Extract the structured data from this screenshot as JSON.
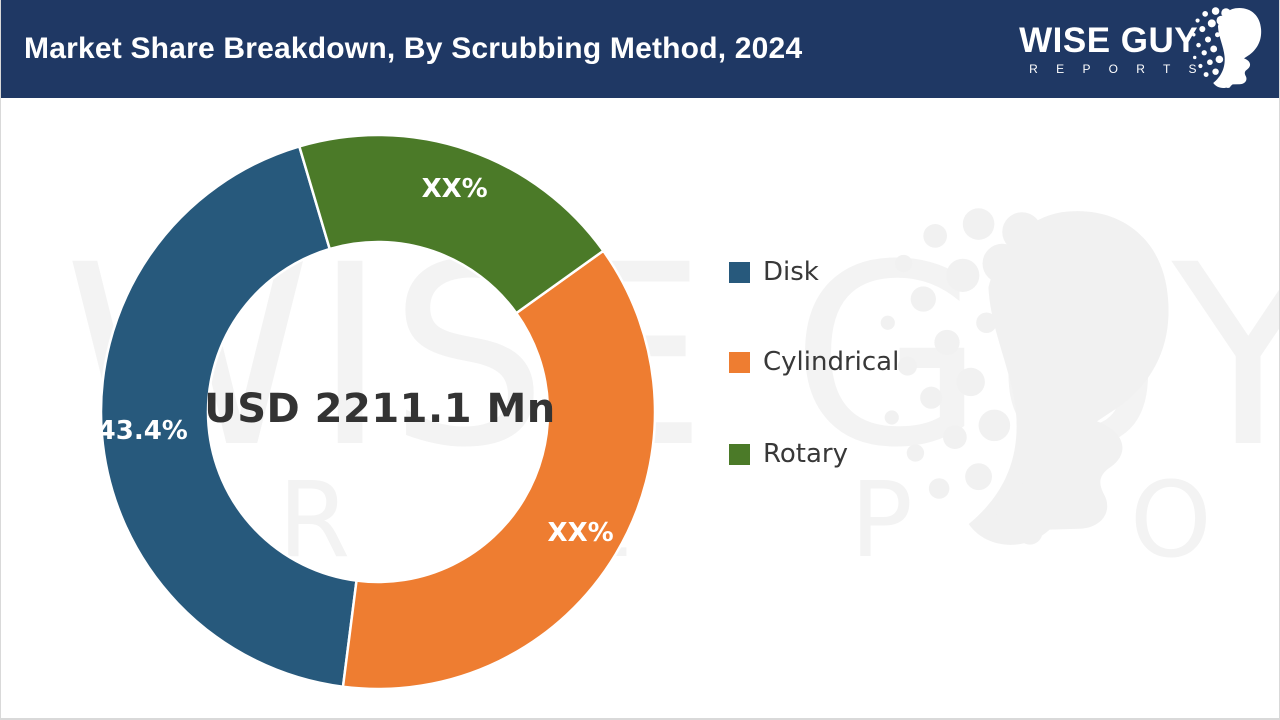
{
  "header": {
    "title": "Market Share Breakdown, By Scrubbing Method, 2024",
    "bg_color": "#1f3864"
  },
  "logo": {
    "line1": "WISE GUY",
    "line2": "R E P O R T S"
  },
  "watermark": {
    "line1": "WISE GUY",
    "line2": "R E P O R T S"
  },
  "chart_data": {
    "type": "pie",
    "subtype": "donut",
    "title": "Market Share Breakdown, By Scrubbing Method, 2024",
    "center_label": "USD 2211.1 Mn",
    "start_angle_deg": 343.5,
    "direction": "counterclockwise",
    "legend_position": "right",
    "segments": [
      {
        "name": "Disk",
        "display_value": "43.4%",
        "est_percent": 43.4,
        "color": "#27597c"
      },
      {
        "name": "Cylindrical",
        "display_value": "XX%",
        "est_percent": 36.9,
        "color": "#ee7d31"
      },
      {
        "name": "Rotary",
        "display_value": "XX%",
        "est_percent": 19.7,
        "color": "#4b7a28"
      }
    ],
    "legend": [
      {
        "label": "Disk",
        "color": "#27597c"
      },
      {
        "label": "Cylindrical",
        "color": "#ee7d31"
      },
      {
        "label": "Rotary",
        "color": "#4b7a28"
      }
    ]
  }
}
